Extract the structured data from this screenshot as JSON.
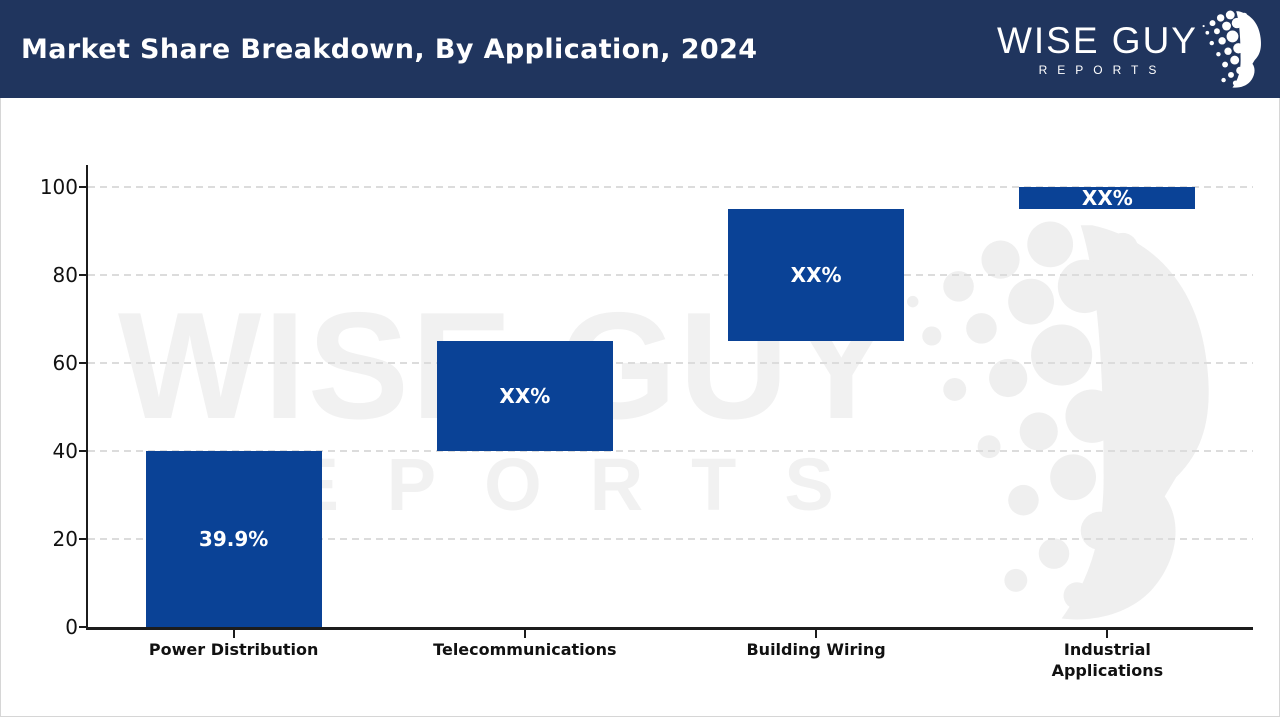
{
  "header": {
    "title": "Market Share Breakdown, By Application, 2024",
    "background_color": "#20355e",
    "logo": {
      "line1": "WISE GUY",
      "line2": "REPORTS"
    }
  },
  "watermark": {
    "line1": "WISE GUY",
    "line2": "REPORTS"
  },
  "chart_data": {
    "type": "bar",
    "subtype": "floating-segment-waterfall",
    "title": "Market Share Breakdown, By Application, 2024",
    "categories": [
      "Power Distribution",
      "Telecommunications",
      "Building Wiring",
      "Industrial\nApplications"
    ],
    "series": [
      {
        "name": "Market Share",
        "segments": [
          {
            "category": "Power Distribution",
            "start": 0,
            "end": 40,
            "label": "39.9%"
          },
          {
            "category": "Telecommunications",
            "start": 40,
            "end": 65,
            "label": "XX%"
          },
          {
            "category": "Building Wiring",
            "start": 65,
            "end": 95,
            "label": "XX%"
          },
          {
            "category": "Industrial Applications",
            "start": 95,
            "end": 100,
            "label": "XX%"
          }
        ]
      }
    ],
    "xlabel": "",
    "ylabel": "",
    "ylim": [
      0,
      100
    ],
    "yticks": [
      0,
      20,
      40,
      60,
      80,
      100
    ],
    "grid": "horizontal-dashed",
    "legend": "none",
    "bar_color": "#0a4296",
    "bar_label_color": "#ffffff"
  }
}
